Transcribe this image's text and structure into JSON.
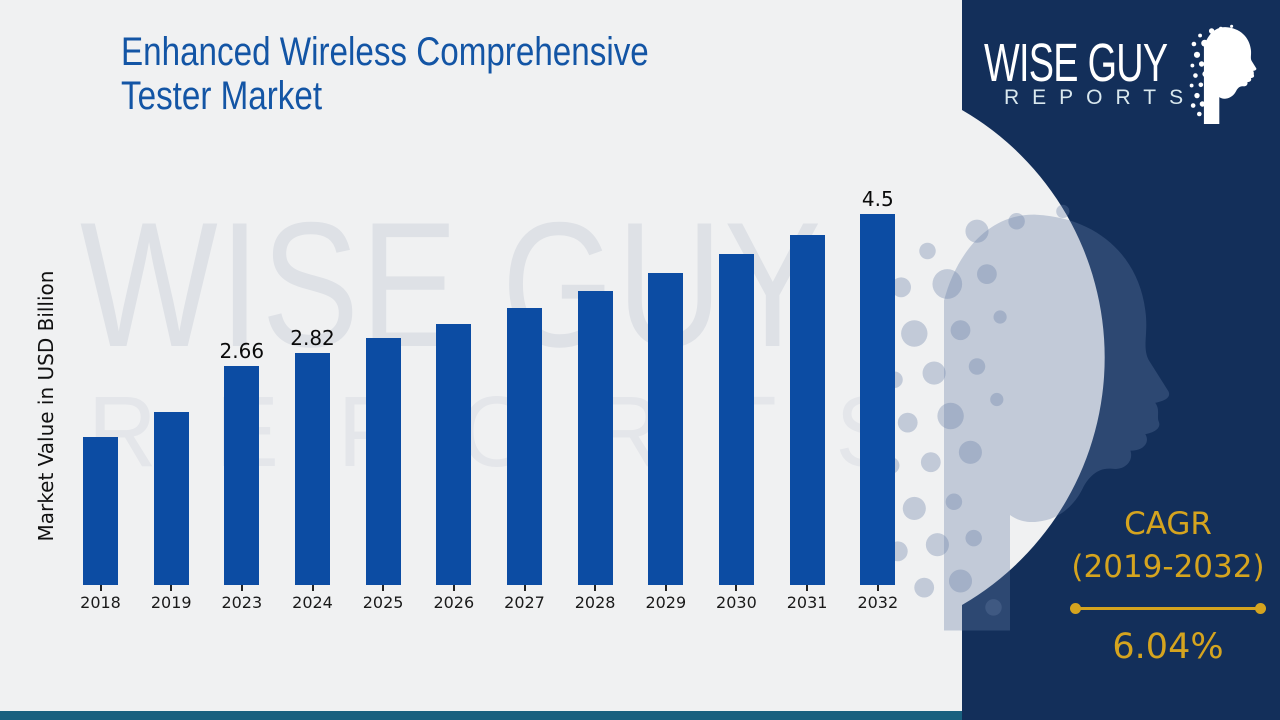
{
  "page": {
    "title_line1": "Enhanced Wireless Comprehensive",
    "title_line2": "Tester Market"
  },
  "watermark": {
    "line1": "WISE GUY",
    "line2": "REPORTS"
  },
  "brand": {
    "name_top": "WISE GUY",
    "name_bottom": "REPORTS"
  },
  "cagr": {
    "label": "CAGR",
    "range": "(2019-2032)",
    "value": "6.04%"
  },
  "chart_data": {
    "type": "bar",
    "title": "Enhanced Wireless Comprehensive Tester Market",
    "xlabel": "",
    "ylabel": "Market Value in USD Billion",
    "categories": [
      "2018",
      "2019",
      "2023",
      "2024",
      "2025",
      "2026",
      "2027",
      "2028",
      "2029",
      "2030",
      "2031",
      "2032"
    ],
    "values": [
      1.8,
      2.1,
      2.66,
      2.82,
      2.99,
      3.17,
      3.36,
      3.57,
      3.78,
      4.01,
      4.25,
      4.5
    ],
    "data_labels": {
      "2023": "2.66",
      "2024": "2.82",
      "2032": "4.5"
    },
    "ylim": [
      0,
      4.8
    ],
    "grid": false,
    "legend": null,
    "bar_color": "#0c4ca3"
  },
  "colors": {
    "background": "#f0f1f2",
    "panel_navy": "#132f5a",
    "bar_blue": "#0c4ca3",
    "title_blue": "#1355a5",
    "accent_gold": "#d5a41f",
    "footer_teal": "#19607f",
    "logo_white": "#ffffff"
  }
}
